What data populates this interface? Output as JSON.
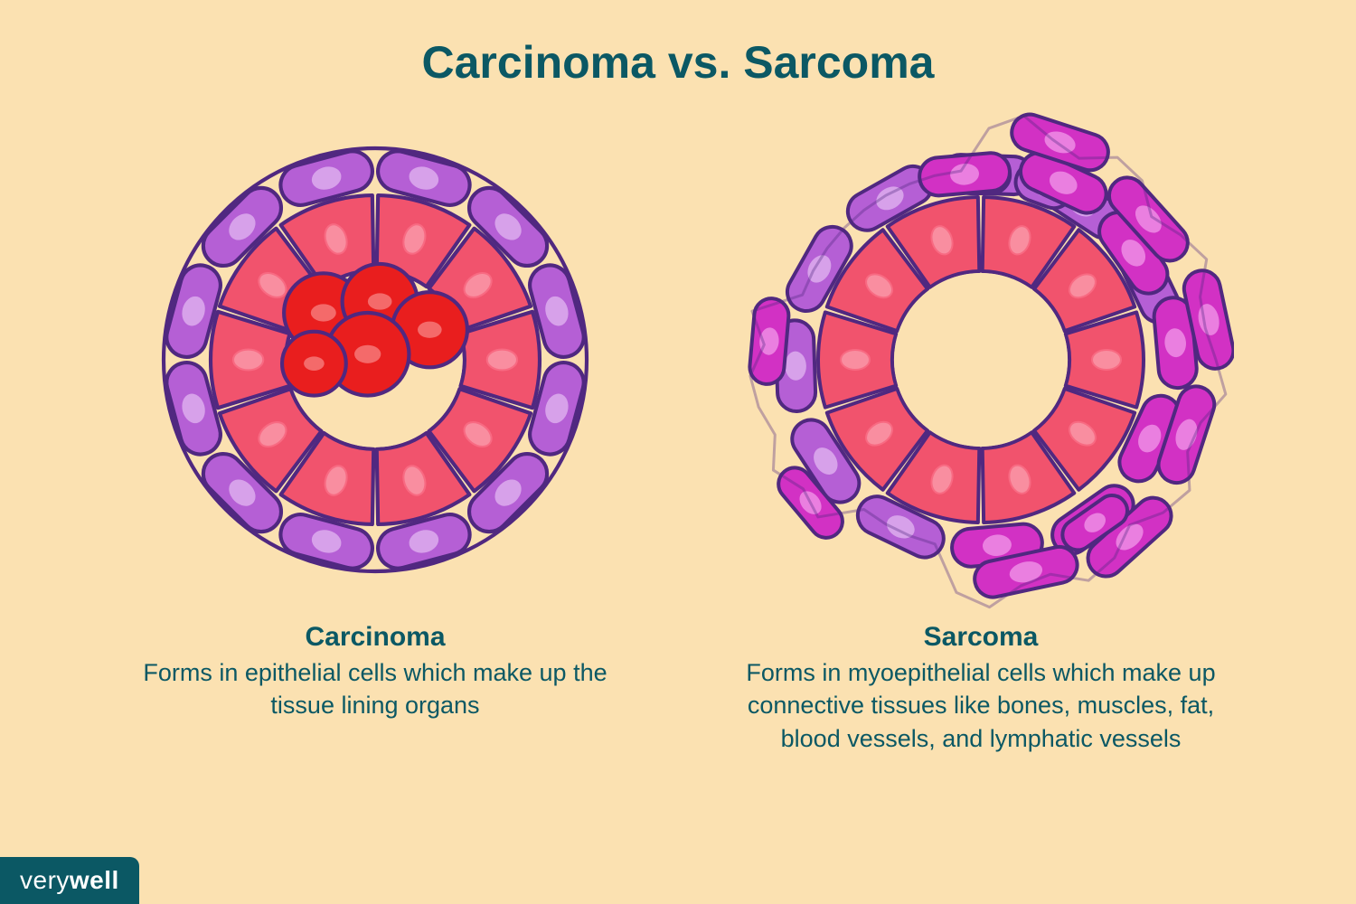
{
  "background_color": "#fbe1b1",
  "title": {
    "text": "Carcinoma vs. Sarcoma",
    "color": "#0b5864",
    "fontsize": 50
  },
  "text_color": "#0b5864",
  "logo": {
    "very": "very",
    "well": "well",
    "bg": "#0b5864",
    "fg": "#ffffff"
  },
  "colors": {
    "outline": "#502880",
    "epi_fill": "#f1536d",
    "epi_nucleus": "#f98ea0",
    "epi_nucleus_stroke": "#f86a82",
    "carcinoma_fill": "#e91e1e",
    "carcinoma_nucleus": "#f46a6a",
    "myo_fill": "#b55fd5",
    "myo_nucleus": "#d7a1ea",
    "sarcoma_fill": "#d231c4",
    "sarcoma_nucleus": "#ea7fe0",
    "bg": "#fbe1b1"
  },
  "panels": [
    {
      "key": "carcinoma",
      "caption_title": "Carcinoma",
      "caption_desc": "Forms in epithelial cells which make up the tissue lining organs",
      "irregular_outer": false
    },
    {
      "key": "sarcoma",
      "caption_title": "Sarcoma",
      "caption_desc": "Forms in myoepithelial cells which make up connective tissues like bones, muscles, fat, blood vessels, and lymphatic vessels",
      "irregular_outer": true
    }
  ]
}
